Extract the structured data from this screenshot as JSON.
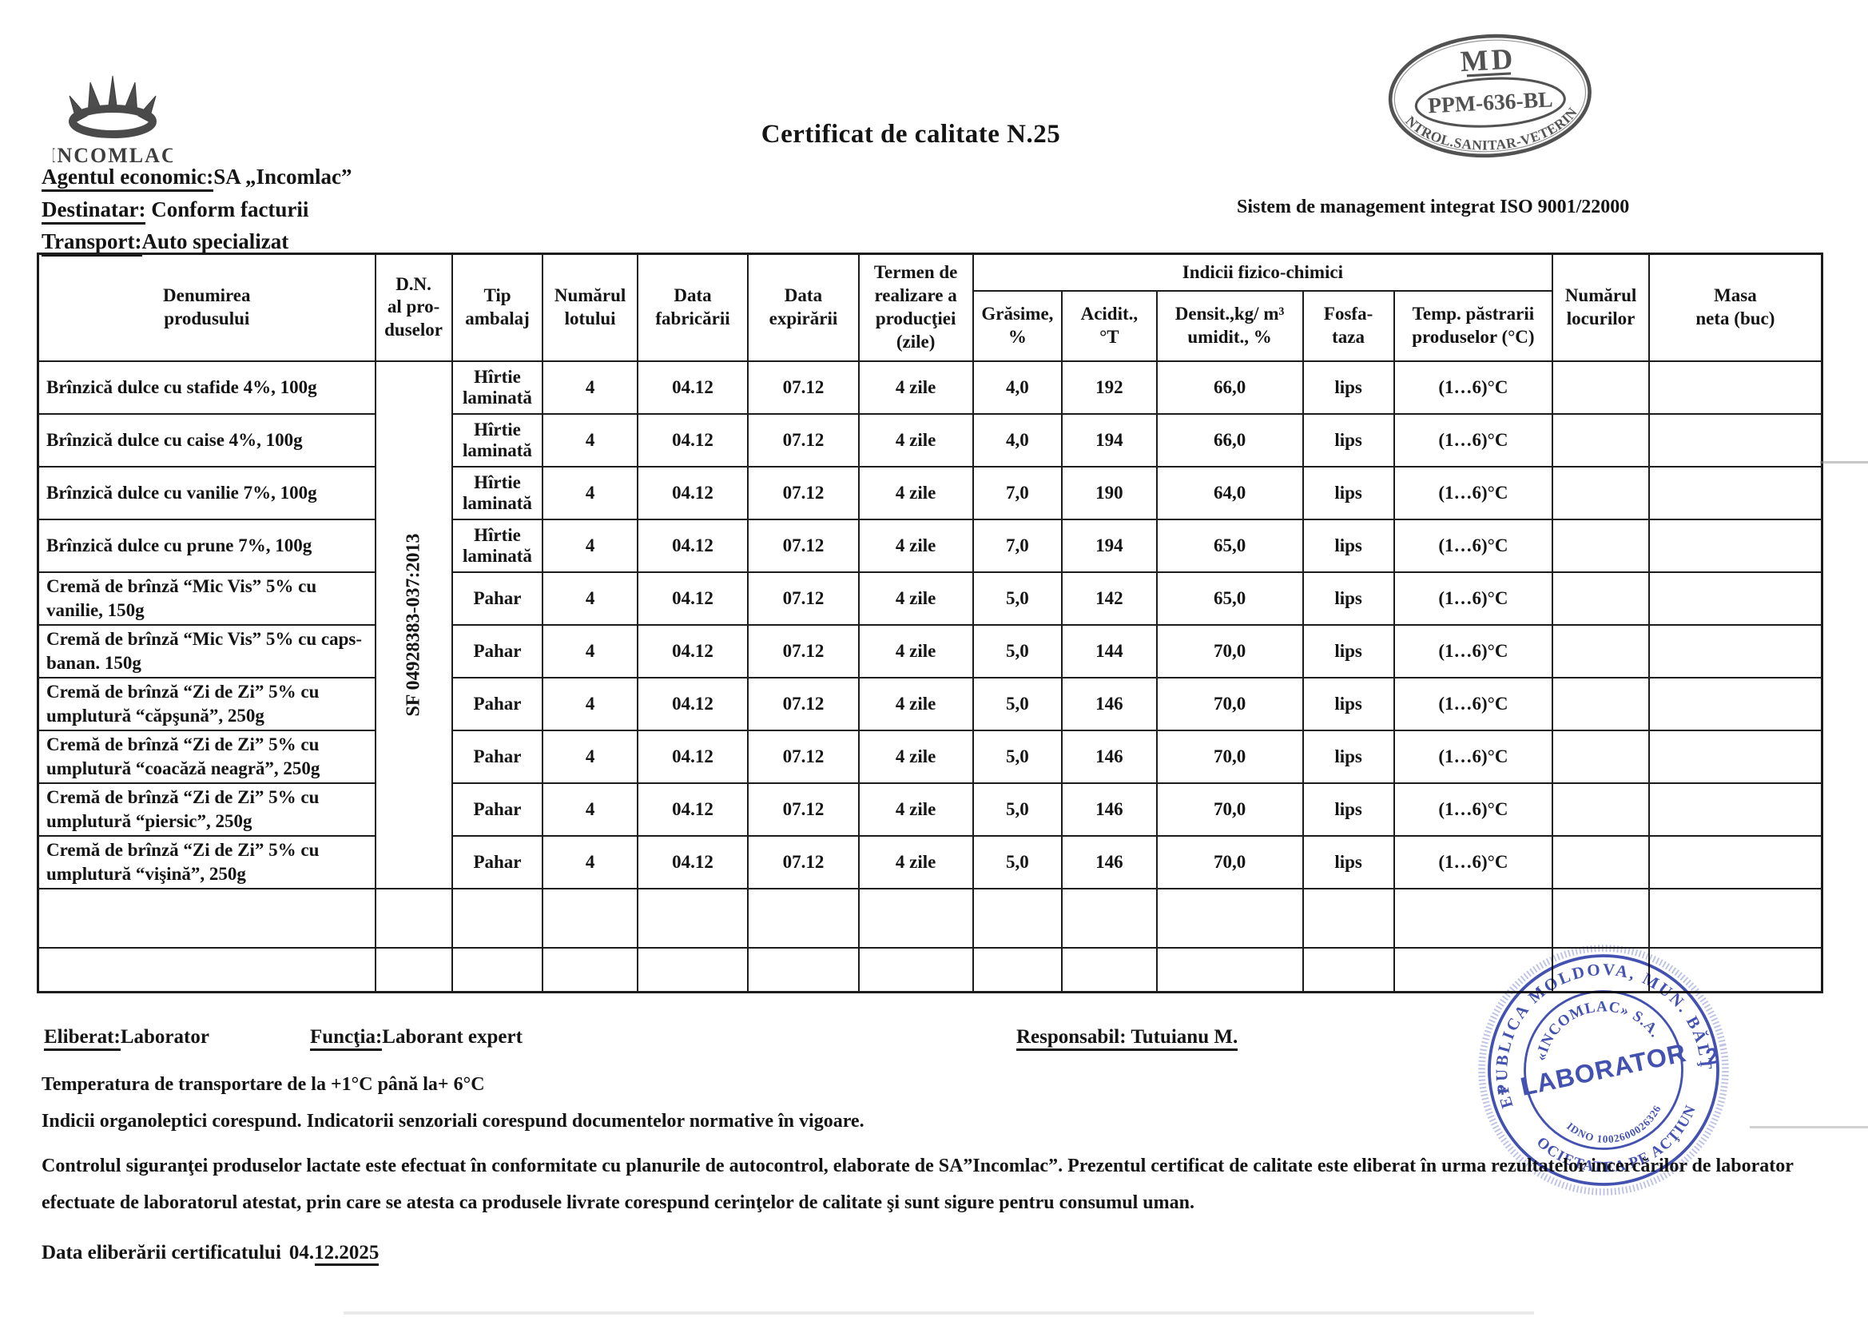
{
  "document": {
    "title": "Certificat de calitate N.25",
    "iso_text": "Sistem de management integrat ISO 9001/22000",
    "logo_text": "INCOMLAC"
  },
  "top_stamp": {
    "country": "MD",
    "code": "PPM-636-BL",
    "arc_text": "CONTROL.SANITAR-VETERINAR"
  },
  "info": {
    "agent_label": "Agentul economic:",
    "agent_value": "SA „Incomlac”",
    "destinatar_label": "Destinatar:",
    "destinatar_value": " Conform facturii",
    "transport_label": "Transport:",
    "transport_value": "Auto specializat"
  },
  "table": {
    "headers": {
      "denumirea": "Denumirea\nprodusului",
      "dn": "D.N.\nal pro-\nduselor",
      "tip": "Tip\nambalaj",
      "numarul": "Numărul\nlotului",
      "data_fab": "Data\nfabricării",
      "data_exp": "Data\nexpirării",
      "termen": "Termen de\nrealizare a\nproducţiei\n(zile)",
      "indicii": "Indicii fizico-chimici",
      "grasime": "Grăsime,\n%",
      "acidit": "Acidit.,\n°T",
      "densit": "Densit.,kg/ m³\numidit., %",
      "fosfataza": "Fosfa-\ntaza",
      "temp": "Temp. păstrarii\nproduselor (°C)",
      "locuri": "Numărul\nlocurilor",
      "masa": "Masa\nneta (buc)"
    },
    "dn_value": "SF 04928383-037:2013",
    "col_keys": [
      "ambalaj",
      "lot",
      "fab",
      "exp",
      "termen",
      "grasime",
      "acidit",
      "densit",
      "fosfataza",
      "temp",
      "locuri",
      "masa"
    ],
    "rows": [
      {
        "empty": false,
        "name": "Brînzică dulce cu stafide 4%, 100g",
        "ambalaj": "Hîrtie laminată",
        "lot": "4",
        "fab": "04.12",
        "exp": "07.12",
        "termen": "4 zile",
        "grasime": "4,0",
        "acidit": "192",
        "densit": "66,0",
        "fosfataza": "lips",
        "temp": "(1…6)°C",
        "locuri": "",
        "masa": ""
      },
      {
        "empty": false,
        "name": "Brînzică dulce cu caise 4%, 100g",
        "ambalaj": "Hîrtie laminată",
        "lot": "4",
        "fab": "04.12",
        "exp": "07.12",
        "termen": "4 zile",
        "grasime": "4,0",
        "acidit": "194",
        "densit": "66,0",
        "fosfataza": "lips",
        "temp": "(1…6)°C",
        "locuri": "",
        "masa": ""
      },
      {
        "empty": false,
        "name": "Brînzică dulce cu vanilie 7%, 100g",
        "ambalaj": "Hîrtie laminată",
        "lot": "4",
        "fab": "04.12",
        "exp": "07.12",
        "termen": "4 zile",
        "grasime": "7,0",
        "acidit": "190",
        "densit": "64,0",
        "fosfataza": "lips",
        "temp": "(1…6)°C",
        "locuri": "",
        "masa": ""
      },
      {
        "empty": false,
        "name": "Brînzică dulce cu prune 7%, 100g",
        "ambalaj": "Hîrtie laminată",
        "lot": "4",
        "fab": "04.12",
        "exp": "07.12",
        "termen": "4 zile",
        "grasime": "7,0",
        "acidit": "194",
        "densit": "65,0",
        "fosfataza": "lips",
        "temp": "(1…6)°C",
        "locuri": "",
        "masa": ""
      },
      {
        "empty": false,
        "name": "Cremă de brînză “Mic Vis” 5% cu vanilie, 150g",
        "ambalaj": "Pahar",
        "lot": "4",
        "fab": "04.12",
        "exp": "07.12",
        "termen": "4 zile",
        "grasime": "5,0",
        "acidit": "142",
        "densit": "65,0",
        "fosfataza": "lips",
        "temp": "(1…6)°C",
        "locuri": "",
        "masa": ""
      },
      {
        "empty": false,
        "name": "Cremă de brînză “Mic Vis” 5% cu caps-banan. 150g",
        "ambalaj": "Pahar",
        "lot": "4",
        "fab": "04.12",
        "exp": "07.12",
        "termen": "4 zile",
        "grasime": "5,0",
        "acidit": "144",
        "densit": "70,0",
        "fosfataza": "lips",
        "temp": "(1…6)°C",
        "locuri": "",
        "masa": ""
      },
      {
        "empty": false,
        "name": "Cremă de brînză “Zi de Zi” 5% cu umplutură “căpşună”, 250g",
        "ambalaj": "Pahar",
        "lot": "4",
        "fab": "04.12",
        "exp": "07.12",
        "termen": "4 zile",
        "grasime": "5,0",
        "acidit": "146",
        "densit": "70,0",
        "fosfataza": "lips",
        "temp": "(1…6)°C",
        "locuri": "",
        "masa": ""
      },
      {
        "empty": false,
        "name": "Cremă de brînză “Zi de Zi” 5% cu umplutură “coacăză neagră”, 250g",
        "ambalaj": "Pahar",
        "lot": "4",
        "fab": "04.12",
        "exp": "07.12",
        "termen": "4 zile",
        "grasime": "5,0",
        "acidit": "146",
        "densit": "70,0",
        "fosfataza": "lips",
        "temp": "(1…6)°C",
        "locuri": "",
        "masa": ""
      },
      {
        "empty": false,
        "name": "Cremă de brînză “Zi de Zi” 5% cu umplutură “piersic”, 250g",
        "ambalaj": "Pahar",
        "lot": "4",
        "fab": "04.12",
        "exp": "07.12",
        "termen": "4 zile",
        "grasime": "5,0",
        "acidit": "146",
        "densit": "70,0",
        "fosfataza": "lips",
        "temp": "(1…6)°C",
        "locuri": "",
        "masa": ""
      },
      {
        "empty": false,
        "name": "Cremă de brînză “Zi de Zi” 5% cu umplutură “vişină”, 250g",
        "ambalaj": "Pahar",
        "lot": "4",
        "fab": "04.12",
        "exp": "07.12",
        "termen": "4 zile",
        "grasime": "5,0",
        "acidit": "146",
        "densit": "70,0",
        "fosfataza": "lips",
        "temp": "(1…6)°C",
        "locuri": "",
        "masa": ""
      },
      {
        "empty": true,
        "name": "",
        "ambalaj": "",
        "lot": "",
        "fab": "",
        "exp": "",
        "termen": "",
        "grasime": "",
        "acidit": "",
        "densit": "",
        "fosfataza": "",
        "temp": "",
        "locuri": "",
        "masa": ""
      },
      {
        "empty": true,
        "name": "",
        "ambalaj": "",
        "lot": "",
        "fab": "",
        "exp": "",
        "termen": "",
        "grasime": "",
        "acidit": "",
        "densit": "",
        "fosfataza": "",
        "temp": "",
        "locuri": "",
        "masa": ""
      }
    ]
  },
  "footer": {
    "eliberat_label": "Eliberat:",
    "eliberat_value": "Laborator",
    "functia_label": "Funcţia:",
    "functia_value": "Laborant expert",
    "responsabil_text": "Responsabil: Tutuianu M.",
    "note1": "Temperatura de transportare de la +1°C până la+ 6°C",
    "note2": "Indicii organoleptici corespund. Indicatorii senzoriali corespund documentelor normative în vigoare.",
    "note3": "Controlul siguranţei produselor lactate este efectuat în conformitate cu planurile de autocontrol, elaborate de SA”Incomlac”. Prezentul certificat de calitate este eliberat în urma rezultatelor incercărilor de laborator efectuate de laboratorul atestat, prin care se atesta ca produsele livrate corespund cerinţelor de calitate şi sunt sigure pentru consumul uman.",
    "date_label": "Data eliberării certificatului",
    "date_value": "04.12.2025"
  },
  "blue_stamp": {
    "ring_top": "REPUBLICA MOLDOVA, MUN. BĂLŢI",
    "ring_bottom": "SOCIETATEA PE ACŢIUNI",
    "inner_top": "«INCOMLAC» S.A.",
    "center": "LABORATOR",
    "inner_bottom": "IDNO 1002600026326",
    "side_number": "2",
    "star": "*",
    "color": "#2e3ea8"
  }
}
